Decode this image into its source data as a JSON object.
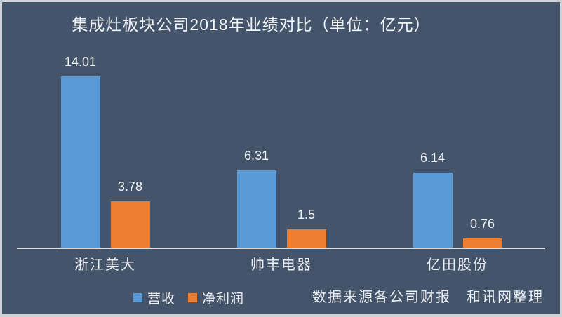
{
  "chart_data": {
    "type": "bar",
    "title": "集成灶板块公司2018年业绩对比（单位：亿元）",
    "categories": [
      "浙江美大",
      "帅丰电器",
      "亿田股份"
    ],
    "series": [
      {
        "name": "营收",
        "color": "#5B9BD5",
        "values": [
          14.01,
          6.31,
          6.14
        ],
        "labels": [
          "14.01",
          "6.31",
          "6.14"
        ]
      },
      {
        "name": "净利润",
        "color": "#ED7D31",
        "values": [
          3.78,
          1.5,
          0.76
        ],
        "labels": [
          "3.78",
          "1.5",
          "0.76"
        ]
      }
    ],
    "ylim": [
      0,
      15
    ],
    "grid": false,
    "legend_position": "bottom",
    "axis_line_color": "#D8DDE4"
  },
  "footer": {
    "source_text": "数据来源各公司财报",
    "credit_text": "和讯网整理"
  },
  "colors": {
    "background": "#44546A",
    "frame": "#CDD2D9",
    "text": "#F2F5F9"
  }
}
